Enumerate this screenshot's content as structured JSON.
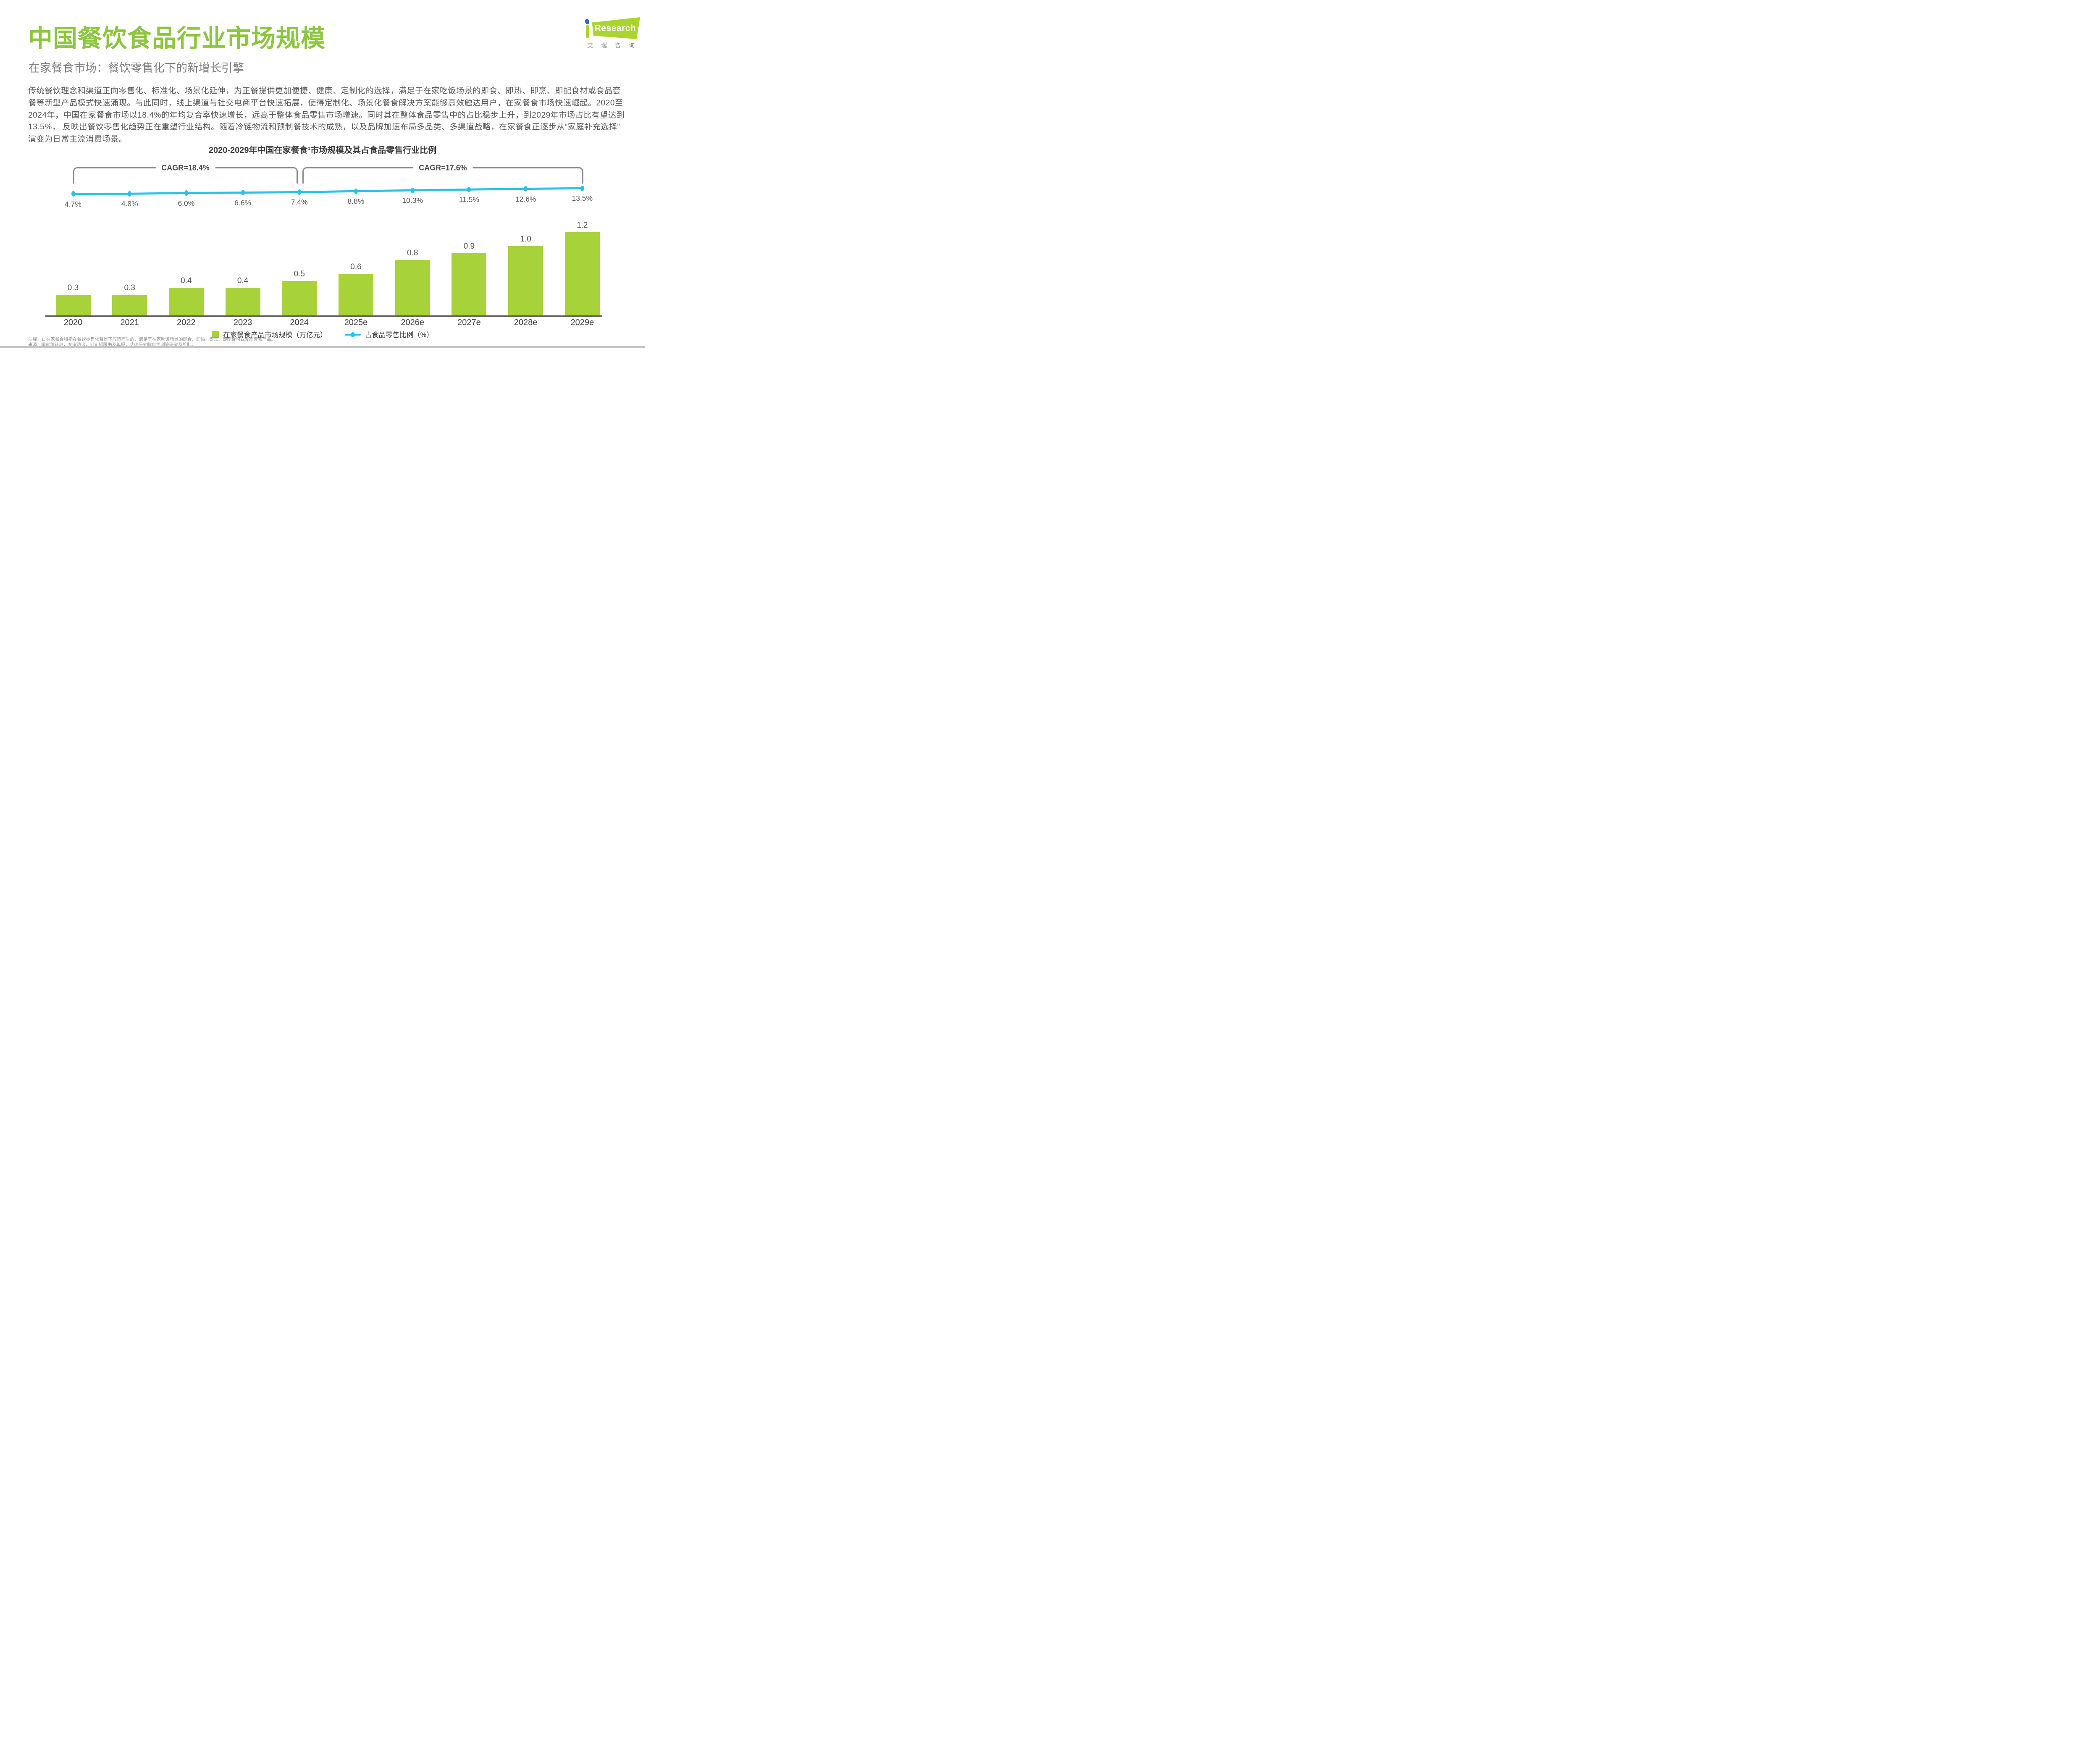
{
  "header": {
    "title": "中国餐饮食品行业市场规模",
    "subtitle": "在家餐食市场：餐饮零售化下的新增长引擎",
    "logo": {
      "brand_name": "Research",
      "brand_cn": "艾瑞咨询"
    }
  },
  "paragraph": {
    "text": "传统餐饮理念和渠道正向零售化、标准化、场景化延伸，为正餐提供更加便捷、健康、定制化的选择，满足于在家吃饭场景的即食、即热、即烹、即配食材或食品套\n餐等新型产品模式快速涌现。与此同时，线上渠道与社交电商平台快速拓展，使得定制化、场景化餐食解决方案能够高效触达用户，在家餐食市场快速崛起。2020至\n2024年，中国在家餐食市场以18.4%的年均复合率快速增长，远高于整体食品零售市场增速。同时其在整体食品零售中的占比稳步上升，到2029年市场占比有望达到\n13.5%， 反映出餐饮零售化趋势正在重塑行业结构。随着冷链物流和预制餐技术的成熟，以及品牌加速布局多品类、多渠道战略，在家餐食正逐步从“家庭补充选择”\n演变为日常主流消费场景。"
  },
  "chart": {
    "title": "2020-2029年中国在家餐食¹市场规模及其占食品零售行业比例",
    "cagr_left": "CAGR=18.4%",
    "cagr_right": "CAGR=17.6%"
  },
  "chart_data": {
    "type": "combo-bar-line",
    "title": "2020-2029年中国在家餐食¹市场规模及其占食品零售行业比例",
    "categories": [
      "2020",
      "2021",
      "2022",
      "2023",
      "2024",
      "2025e",
      "2026e",
      "2027e",
      "2028e",
      "2029e"
    ],
    "series": [
      {
        "name": "在家餐食产品市场规模（万亿元）",
        "type": "bar",
        "values": [
          0.3,
          0.3,
          0.4,
          0.4,
          0.5,
          0.6,
          0.8,
          0.9,
          1.0,
          1.2
        ],
        "unit": "万亿元",
        "color": "#A8D239"
      },
      {
        "name": "占食品零售比例（%）",
        "type": "line",
        "values": [
          4.7,
          4.8,
          6.0,
          6.6,
          7.4,
          8.8,
          10.3,
          11.5,
          12.6,
          13.5
        ],
        "unit": "%",
        "color": "#29C2E9"
      }
    ],
    "bar_value_labels": [
      "0.3",
      "0.3",
      "0.4",
      "0.4",
      "0.5",
      "0.6",
      "0.8",
      "0.9",
      "1.0",
      "1.2"
    ],
    "line_value_labels": [
      "4.7%",
      "4.8%",
      "6.0%",
      "6.6%",
      "7.4%",
      "8.8%",
      "10.3%",
      "11.5%",
      "12.6%",
      "13.5%"
    ],
    "annotations": [
      {
        "label": "CAGR=18.4%",
        "span": [
          "2020",
          "2024"
        ]
      },
      {
        "label": "CAGR=17.6%",
        "span": [
          "2024",
          "2029e"
        ]
      }
    ],
    "legend_position": "bottom",
    "grid": false
  },
  "legend": {
    "bar_label": "在家餐食产品市场规模（万亿元）",
    "line_label": "占食品零售比例（%）"
  },
  "footnotes": {
    "note": "注释：1. 在家餐食特指在餐饮零售化背景下应运而生的，满足于在家吃饭场景的即食、即热、即烹、即配食材或食品套餐产品。",
    "source": "来源：国家统计局，专家访谈，公司招股书及年报，艾瑞研究院自主测算研究及绘制。"
  },
  "colors": {
    "title_green": "#8CC63F",
    "bar_green": "#A8D239",
    "line_cyan": "#29C2E9",
    "logo_green": "#ABD430",
    "logo_blue": "#2A6FB5",
    "body_gray": "#595757"
  }
}
